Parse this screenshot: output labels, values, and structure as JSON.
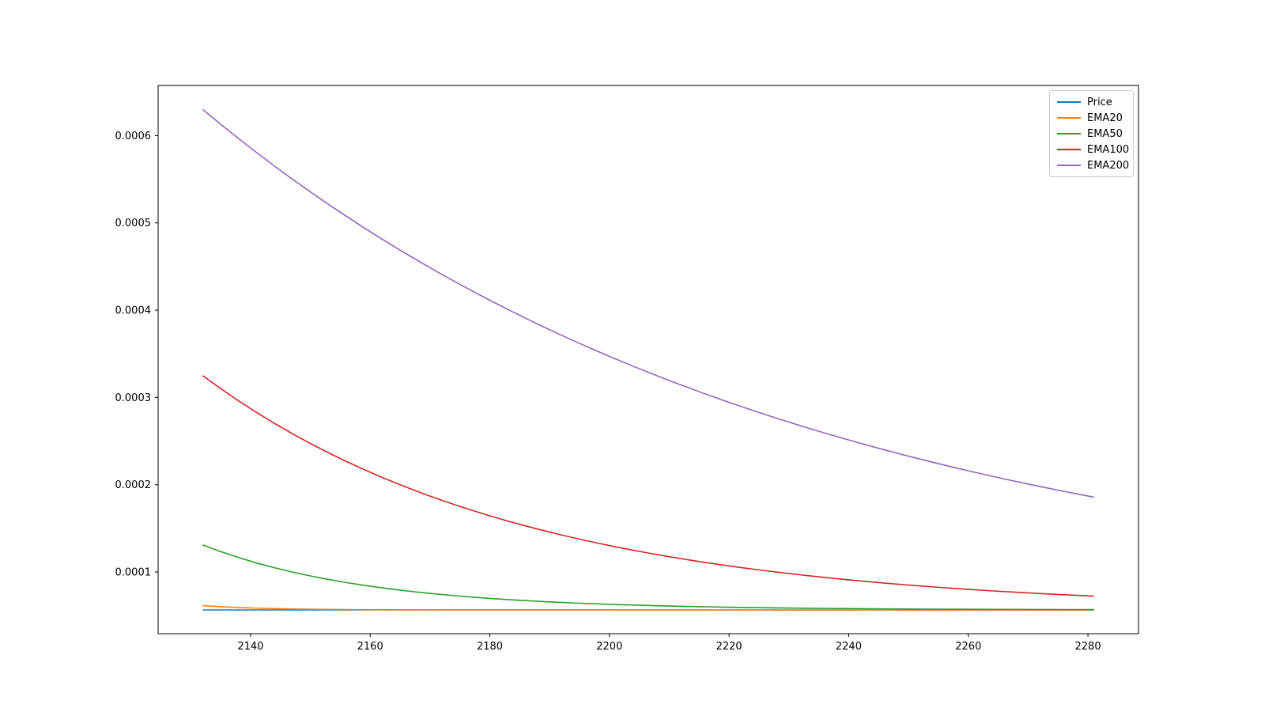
{
  "figure": {
    "background_color": "#ffffff",
    "axes_edge_color": "#000000",
    "tick_label_color": "#000000"
  },
  "legend": {
    "position": "upper right",
    "border_color": "#cccccc",
    "background_color": "rgba(255,255,255,0.8)"
  },
  "chart_data": {
    "type": "line",
    "title": "",
    "xlabel": "",
    "ylabel": "",
    "grid": false,
    "legend_position": "upper right",
    "xlim": [
      2124.55,
      2288.45
    ],
    "ylim": [
      2.93e-05,
      0.0006575
    ],
    "x_ticks": [
      {
        "value": 2140,
        "label": "2140"
      },
      {
        "value": 2160,
        "label": "2160"
      },
      {
        "value": 2180,
        "label": "2180"
      },
      {
        "value": 2200,
        "label": "2200"
      },
      {
        "value": 2220,
        "label": "2220"
      },
      {
        "value": 2240,
        "label": "2240"
      },
      {
        "value": 2260,
        "label": "2260"
      },
      {
        "value": 2280,
        "label": "2280"
      }
    ],
    "y_ticks": [
      {
        "value": 0.0001,
        "label": "0.0001"
      },
      {
        "value": 0.0002,
        "label": "0.0002"
      },
      {
        "value": 0.0003,
        "label": "0.0003"
      },
      {
        "value": 0.0004,
        "label": "0.0004"
      },
      {
        "value": 0.0005,
        "label": "0.0005"
      },
      {
        "value": 0.0006,
        "label": "0.0006"
      }
    ],
    "y_unit": 1e-06,
    "x": [
      2132,
      2135,
      2138,
      2141,
      2144,
      2147,
      2150,
      2153,
      2156,
      2159,
      2162,
      2165,
      2168,
      2171,
      2174,
      2177,
      2180,
      2183,
      2186,
      2189,
      2192,
      2195,
      2198,
      2201,
      2204,
      2207,
      2210,
      2213,
      2216,
      2219,
      2222,
      2225,
      2228,
      2231,
      2234,
      2237,
      2240,
      2243,
      2246,
      2249,
      2252,
      2255,
      2258,
      2261,
      2264,
      2267,
      2270,
      2273,
      2276,
      2279,
      2281
    ],
    "series": [
      {
        "name": "Price",
        "color": "#1f77b4",
        "y_micro": [
          56.5,
          56.5,
          56.5,
          56.5,
          56.5,
          56.5,
          56.5,
          56.5,
          56.5,
          56.5,
          56.5,
          56.5,
          56.5,
          56.5,
          56.5,
          56.5,
          56.5,
          56.5,
          56.5,
          56.5,
          56.5,
          56.5,
          56.5,
          56.5,
          56.5,
          56.5,
          56.5,
          56.5,
          56.5,
          56.5,
          56.5,
          56.5,
          56.5,
          56.5,
          56.5,
          56.5,
          56.5,
          56.5,
          56.5,
          56.5,
          56.5,
          56.5,
          56.5,
          56.5,
          56.5,
          56.5,
          56.5,
          56.5,
          56.5,
          56.5,
          56.5
        ]
      },
      {
        "name": "EMA20",
        "color": "#ff7f0e",
        "y_micro": [
          61.5,
          60.2,
          59.24,
          58.53,
          58.0,
          57.61,
          57.33,
          57.11,
          56.95,
          56.84,
          56.75,
          56.68,
          56.64,
          56.6,
          56.57,
          56.56,
          56.54,
          56.53,
          56.52,
          56.52,
          56.51,
          56.51,
          56.51,
          56.5,
          56.5,
          56.5,
          56.5,
          56.5,
          56.5,
          56.5,
          56.5,
          56.5,
          56.5,
          56.5,
          56.5,
          56.5,
          56.5,
          56.5,
          56.5,
          56.5,
          56.5,
          56.5,
          56.5,
          56.5,
          56.5,
          56.5,
          56.5,
          56.5,
          56.5,
          56.5,
          56.5
        ]
      },
      {
        "name": "EMA50",
        "color": "#2ca02c",
        "y_micro": [
          131.0,
          123.37,
          116.53,
          110.38,
          104.86,
          99.91,
          95.47,
          91.48,
          87.9,
          84.68,
          81.8,
          79.21,
          76.88,
          74.8,
          72.92,
          71.24,
          69.73,
          68.38,
          67.16,
          66.07,
          65.09,
          64.21,
          63.42,
          62.71,
          62.08,
          61.51,
          60.99,
          60.53,
          60.12,
          59.75,
          59.42,
          59.12,
          58.85,
          58.61,
          58.39,
          58.2,
          58.02,
          57.87,
          57.73,
          57.6,
          57.49,
          57.39,
          57.3,
          57.22,
          57.14,
          57.08,
          57.02,
          56.97,
          56.92,
          56.88,
          56.85
        ]
      },
      {
        "name": "EMA100",
        "color": "#d62728",
        "y_micro": [
          325.0,
          310.12,
          296.07,
          282.8,
          270.26,
          258.42,
          247.23,
          236.66,
          226.68,
          217.25,
          208.34,
          199.93,
          191.98,
          184.47,
          177.38,
          170.69,
          164.36,
          158.38,
          152.74,
          147.41,
          142.37,
          137.61,
          133.12,
          128.87,
          124.86,
          121.07,
          117.5,
          114.12,
          110.92,
          107.91,
          105.06,
          102.37,
          99.83,
          97.43,
          95.16,
          93.02,
          90.99,
          89.08,
          87.28,
          85.57,
          83.96,
          82.44,
          81.0,
          79.64,
          78.36,
          77.15,
          76.01,
          74.93,
          73.91,
          72.94,
          72.33
        ]
      },
      {
        "name": "EMA200",
        "color": "#9467bd",
        "y_micro": [
          630.0,
          613.05,
          596.6,
          580.64,
          565.15,
          550.12,
          535.53,
          521.37,
          507.63,
          494.3,
          481.36,
          468.8,
          456.61,
          444.79,
          433.31,
          422.17,
          411.37,
          400.88,
          390.7,
          380.82,
          371.24,
          361.93,
          352.91,
          344.15,
          335.64,
          327.39,
          319.39,
          311.62,
          304.08,
          296.76,
          289.66,
          282.77,
          276.08,
          269.59,
          263.29,
          257.18,
          251.25,
          245.49,
          239.9,
          234.48,
          229.22,
          224.12,
          219.16,
          214.35,
          209.69,
          205.16,
          200.77,
          196.5,
          192.36,
          188.35,
          185.75
        ]
      }
    ]
  }
}
